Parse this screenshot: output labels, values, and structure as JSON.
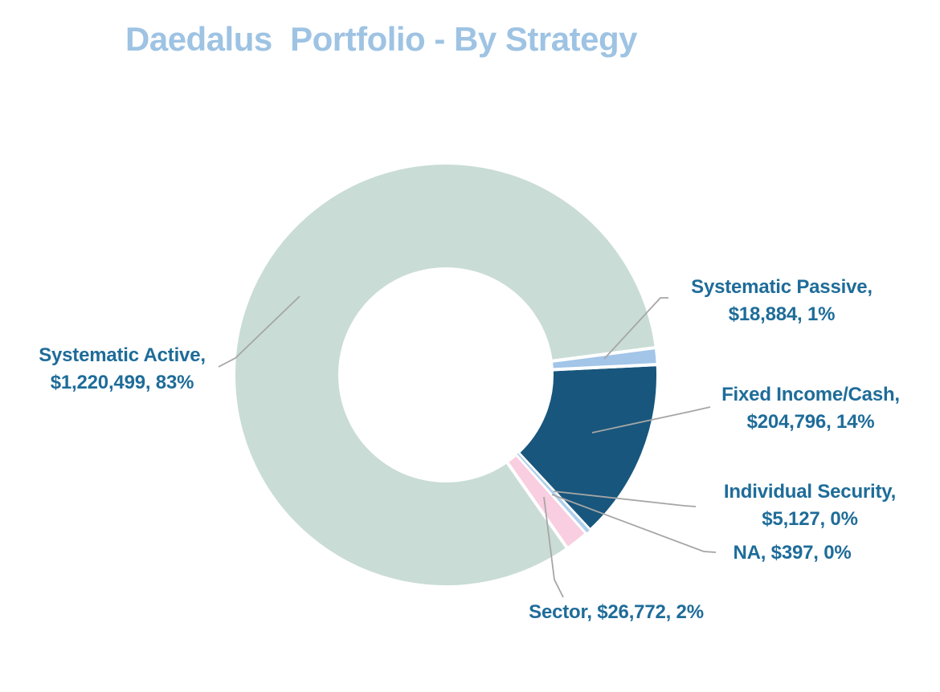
{
  "title": {
    "text": "Daedalus  Portfolio - By Strategy",
    "color": "#9EC3E3"
  },
  "chart_data": {
    "type": "pie",
    "subtype": "donut",
    "title": "Daedalus  Portfolio - By Strategy",
    "legend": "none",
    "data_labels": "category, value, percent",
    "total": 1476475,
    "start_angle_deg": 145,
    "clockwise": true,
    "slices": [
      {
        "name": "Systematic Active",
        "value": 1220499,
        "value_display": "$1,220,499",
        "percent_display": "83%",
        "color": "#C9DCD6",
        "label_lines": [
          "Systematic Active,",
          "$1,220,499, 83%"
        ]
      },
      {
        "name": "Systematic Passive",
        "value": 18884,
        "value_display": "$18,884",
        "percent_display": "1%",
        "color": "#A2C5E8",
        "label_lines": [
          "Systematic Passive,",
          "$18,884, 1%"
        ]
      },
      {
        "name": "Fixed Income/Cash",
        "value": 204796,
        "value_display": "$204,796",
        "percent_display": "14%",
        "color": "#18567D",
        "label_lines": [
          "Fixed Income/Cash,",
          "$204,796, 14%"
        ]
      },
      {
        "name": "Individual Security",
        "value": 5127,
        "value_display": "$5,127",
        "percent_display": "0%",
        "color": "#AFCFEA",
        "label_lines": [
          "Individual Security,",
          "$5,127, 0%"
        ]
      },
      {
        "name": "NA",
        "value": 397,
        "value_display": "$397",
        "percent_display": "0%",
        "color": "#DCE9F5",
        "label_lines": [
          "NA, $397, 0%"
        ]
      },
      {
        "name": "Sector",
        "value": 26772,
        "value_display": "$26,772",
        "percent_display": "2%",
        "color": "#F8CEE0",
        "label_lines": [
          "Sector, $26,772, 2%"
        ]
      }
    ],
    "label_color": "#1E6C99",
    "leader_line_color": "#A6A6A6"
  }
}
